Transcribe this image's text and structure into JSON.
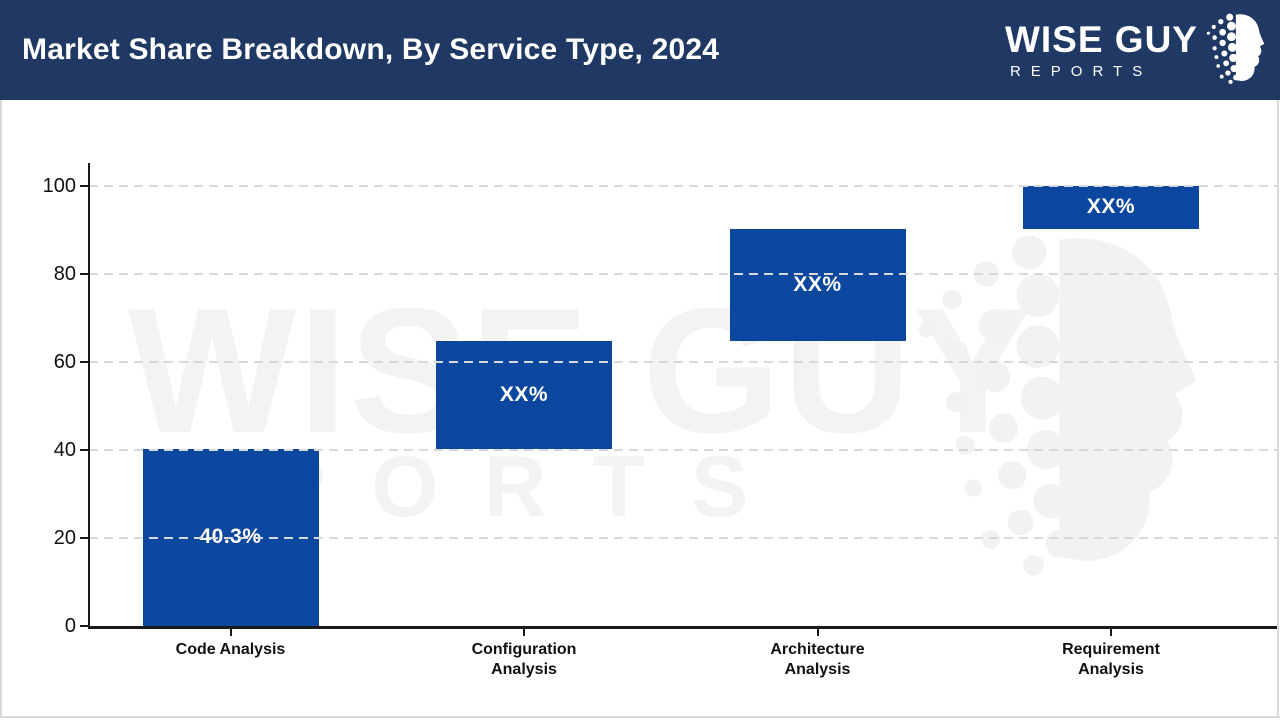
{
  "header": {
    "title": "Market Share Breakdown, By Service Type, 2024",
    "logo": {
      "line1": "WISE GUY",
      "line2": "REPORTS"
    }
  },
  "watermark": {
    "line1": "WISE GUY",
    "line2": "PORTS"
  },
  "colors": {
    "header_bg": "#1f3864",
    "bar": "#0c479f",
    "grid": "#d8d8d8",
    "watermark": "#f2f2f2",
    "axis": "#1a1a1a",
    "bar_label": "#ffffff"
  },
  "chart_data": {
    "type": "bar",
    "subtype": "waterfall",
    "title": "Market Share Breakdown, By Service Type, 2024",
    "categories": [
      "Code Analysis",
      "Configuration\nAnalysis",
      "Architecture\nAnalysis",
      "Requirement\nAnalysis"
    ],
    "bars": [
      {
        "category": "Code Analysis",
        "start": 0,
        "end": 40.3,
        "label": "40.3%"
      },
      {
        "category": "Configuration Analysis",
        "start": 40.3,
        "end": 64.8,
        "label": "XX%"
      },
      {
        "category": "Architecture Analysis",
        "start": 64.8,
        "end": 90.3,
        "label": "XX%"
      },
      {
        "category": "Requirement Analysis",
        "start": 90.3,
        "end": 100,
        "label": "XX%"
      }
    ],
    "ylim": [
      0,
      100
    ],
    "yticks": [
      0,
      20,
      40,
      60,
      80,
      100
    ],
    "grid": "dashed-horizontal-above-bars",
    "legend": "none"
  }
}
